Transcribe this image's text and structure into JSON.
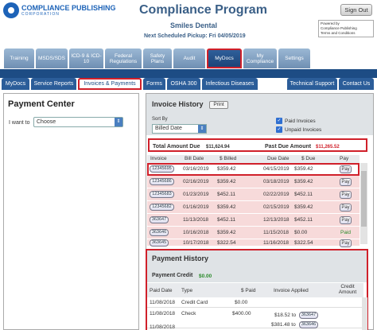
{
  "brand": {
    "logo_text": "COMPLIANCE PUBLISHING",
    "logo_sub": "CORPORATION",
    "accent": "#1d63b8"
  },
  "header": {
    "title": "Compliance Program",
    "client": "Smiles Dental",
    "pickup": "Next Scheduled Pickup: Fri 04/05/2019",
    "signout": "Sign Out",
    "powered_line1": "Powered by",
    "powered_line2": "Compliance Publishing",
    "powered_line3": "Terms and Conditions"
  },
  "main_tabs": [
    {
      "label": "Training"
    },
    {
      "label": "MSDS/SDS"
    },
    {
      "label": "ICD-9 & ICD-10"
    },
    {
      "label": "Federal Regulations"
    },
    {
      "label": "Safety Plans"
    },
    {
      "label": "Audit"
    },
    {
      "label": "MyDocs"
    },
    {
      "label": "My Compliance"
    },
    {
      "label": "Settings"
    }
  ],
  "sub_tabs": [
    {
      "label": "MyDocs"
    },
    {
      "label": "Service Reports"
    },
    {
      "label": "Invoices & Payments"
    },
    {
      "label": "Forms"
    },
    {
      "label": "OSHA 300"
    },
    {
      "label": "Infectious Diseases"
    },
    {
      "label": "Technical Support"
    },
    {
      "label": "Contact Us"
    }
  ],
  "payment_center": {
    "title": "Payment Center",
    "i_want_to": "I want to",
    "choose": "Choose"
  },
  "invoice_history": {
    "title": "Invoice History",
    "print": "Print",
    "sort_by": "Sort By",
    "sort_value": "Billed Date",
    "paid_invoices": "Paid Invoices",
    "unpaid_invoices": "Unpaid Invoices",
    "total_label": "Total Amount Due",
    "total_value": "$11,624.94",
    "pastdue_label": "Past Due Amount",
    "pastdue_value": "$11,265.52",
    "columns": [
      "Invoice",
      "Bill Date",
      "$ Billed",
      "Due Date",
      "$ Due",
      "Pay"
    ],
    "rows": [
      {
        "invoice": "12345695",
        "bill_date": "03/16/2019",
        "billed": "$359.42",
        "due_date": "04/15/2019",
        "due": "$359.42",
        "pay": "Pay"
      },
      {
        "invoice": "12345686",
        "bill_date": "02/16/2019",
        "billed": "$359.42",
        "due_date": "03/18/2019",
        "due": "$359.42",
        "pay": "Pay"
      },
      {
        "invoice": "12345683",
        "bill_date": "01/23/2019",
        "billed": "$452.11",
        "due_date": "02/22/2019",
        "due": "$452.11",
        "pay": "Pay"
      },
      {
        "invoice": "12345682",
        "bill_date": "01/16/2019",
        "billed": "$359.42",
        "due_date": "02/15/2019",
        "due": "$359.42",
        "pay": "Pay"
      },
      {
        "invoice": "363647",
        "bill_date": "11/13/2018",
        "billed": "$452.11",
        "due_date": "12/13/2018",
        "due": "$452.11",
        "pay": "Pay"
      },
      {
        "invoice": "363646",
        "bill_date": "10/16/2018",
        "billed": "$359.42",
        "due_date": "11/15/2018",
        "due": "$0.00",
        "pay": "Paid"
      },
      {
        "invoice": "363645",
        "bill_date": "10/17/2018",
        "billed": "$322.54",
        "due_date": "11/16/2018",
        "due": "$322.54",
        "pay": "Pay"
      }
    ]
  },
  "payment_history": {
    "title": "Payment History",
    "credit_label": "Payment Credit",
    "credit_value": "$0.00",
    "columns": [
      "Paid Date",
      "Type",
      "$ Paid",
      "Invoice Applied",
      "Credit Amount"
    ],
    "rows": [
      {
        "paid_date": "11/08/2018",
        "type": "Credit Card",
        "paid": "$0.00",
        "applied": [],
        "credit": ""
      },
      {
        "paid_date": "11/08/2018",
        "type": "Check",
        "paid": "$400.00",
        "applied": [
          {
            "amount": "$18.52 to",
            "invoice": "363647"
          },
          {
            "amount": "$381.48 to",
            "invoice": "363646"
          }
        ],
        "credit": ""
      },
      {
        "paid_date": "11/08/2018",
        "type": "",
        "paid": "",
        "applied": [],
        "credit": ""
      }
    ]
  }
}
